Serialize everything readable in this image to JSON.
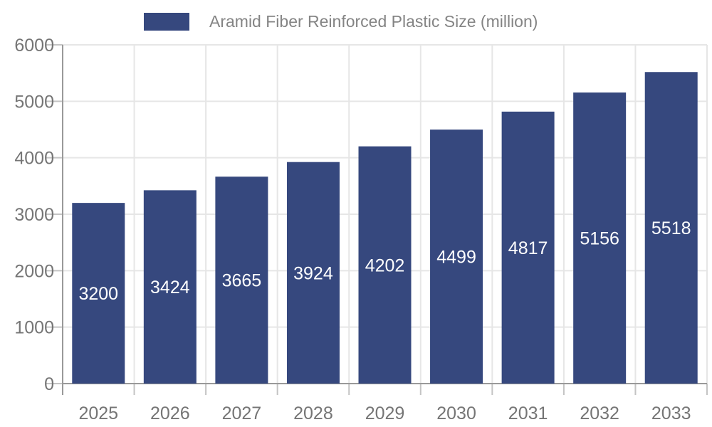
{
  "chart_data": {
    "type": "bar",
    "title": "Aramid Fiber Reinforced Plastic Size (million)",
    "categories": [
      "2025",
      "2026",
      "2027",
      "2028",
      "2029",
      "2030",
      "2031",
      "2032",
      "2033"
    ],
    "series": [
      {
        "name": "Aramid Fiber Reinforced Plastic Size (million)",
        "values": [
          3200,
          3424,
          3665,
          3924,
          4202,
          4499,
          4817,
          5156,
          5518
        ]
      }
    ],
    "xlabel": "",
    "ylabel": "",
    "ylim": [
      0,
      6000
    ],
    "yticks": [
      0,
      1000,
      2000,
      3000,
      4000,
      5000,
      6000
    ],
    "grid": true,
    "legend_position": "top",
    "value_label_position": "inside-center"
  },
  "colors": {
    "bar": "#36487e",
    "grid": "#e6e6e6",
    "axis": "#999999",
    "tick": "#c4c4c4",
    "axis_label": "#757575",
    "title": "#848484",
    "value_label": "#ffffff",
    "background": "#ffffff"
  }
}
